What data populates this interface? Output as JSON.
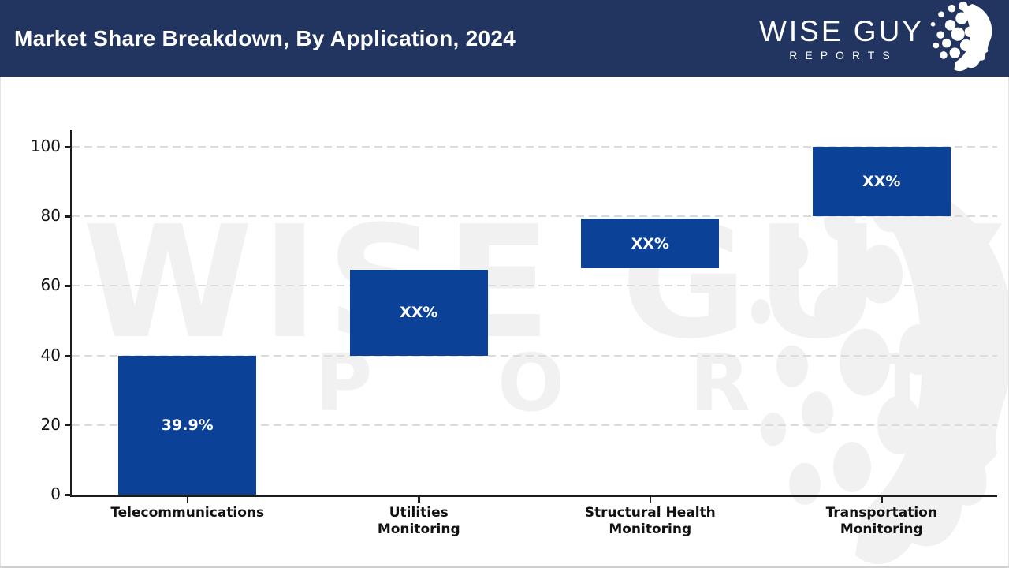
{
  "header": {
    "title": "Market Share Breakdown, By Application, 2024",
    "logo": {
      "line1": "WISE GUY",
      "line2": "REPORTS"
    }
  },
  "watermark": {
    "line1": "WISE GUY",
    "line2": "P O R T S"
  },
  "chart_data": {
    "type": "bar",
    "subtype": "waterfall",
    "title": "Market Share Breakdown, By Application, 2024",
    "categories": [
      "Telecommunications",
      "Utilities Monitoring",
      "Structural Health Monitoring",
      "Transportation Monitoring"
    ],
    "category_label_lines": [
      [
        "Telecommunications"
      ],
      [
        "Utilities",
        "Monitoring"
      ],
      [
        "Structural Health",
        "Monitoring"
      ],
      [
        "Transportation",
        "Monitoring"
      ]
    ],
    "series": [
      {
        "name": "Market Share (%)",
        "segments": [
          {
            "category": "Telecommunications",
            "start": 0,
            "end": 39.9,
            "label": "39.9%"
          },
          {
            "category": "Utilities Monitoring",
            "start": 40,
            "end": 64.6,
            "label": "XX%"
          },
          {
            "category": "Structural Health Monitoring",
            "start": 65,
            "end": 79.4,
            "label": "XX%"
          },
          {
            "category": "Transportation Monitoring",
            "start": 80,
            "end": 100,
            "label": "XX%"
          }
        ]
      }
    ],
    "xlabel": "",
    "ylabel": "",
    "ylim": [
      0,
      100
    ],
    "yticks": [
      0,
      20,
      40,
      60,
      80,
      100
    ],
    "grid": "horizontal-dashed",
    "legend": "none",
    "bar_color": "#0b4197",
    "bar_label_color": "#ffffff",
    "header_color": "#213560",
    "watermark_color": "#f1f1f2"
  }
}
